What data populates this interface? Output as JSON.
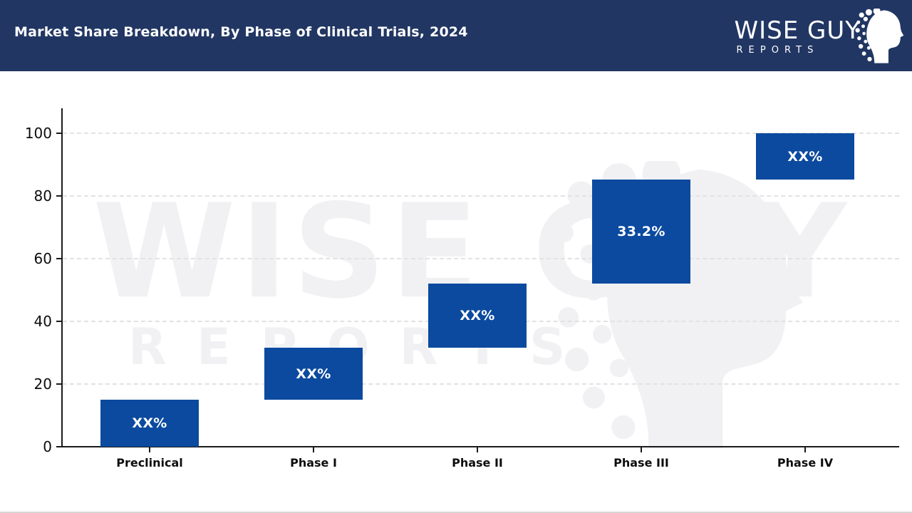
{
  "header": {
    "title": "Market Share Breakdown, By Phase of Clinical Trials, 2024",
    "logo": {
      "line1": "WISE GUY",
      "line2": "REPORTS"
    }
  },
  "watermark": {
    "line1": "WISE GUY",
    "line2": "REPORTS"
  },
  "chart_data": {
    "type": "bar",
    "subtype": "waterfall",
    "title": "Market Share Breakdown, By Phase of Clinical Trials, 2024",
    "categories": [
      "Preclinical",
      "Phase I",
      "Phase II",
      "Phase III",
      "Phase IV"
    ],
    "segments": [
      {
        "category": "Preclinical",
        "start": 0,
        "end": 15,
        "value": 15,
        "label": "XX%"
      },
      {
        "category": "Phase I",
        "start": 15,
        "end": 31.5,
        "value": 16.5,
        "label": "XX%"
      },
      {
        "category": "Phase II",
        "start": 31.5,
        "end": 52,
        "value": 20.5,
        "label": "XX%"
      },
      {
        "category": "Phase III",
        "start": 52,
        "end": 85.2,
        "value": 33.2,
        "label": "33.2%"
      },
      {
        "category": "Phase IV",
        "start": 85.2,
        "end": 100,
        "value": 14.8,
        "label": "XX%"
      }
    ],
    "xlabel": "",
    "ylabel": "",
    "ylim": [
      0,
      108
    ],
    "yticks": [
      0,
      20,
      40,
      60,
      80,
      100
    ],
    "grid": "horizontal-dashed",
    "legend": "none",
    "bar_color": "#0b4a9f",
    "value_label_color": "#ffffff",
    "header_color": "#213663"
  }
}
